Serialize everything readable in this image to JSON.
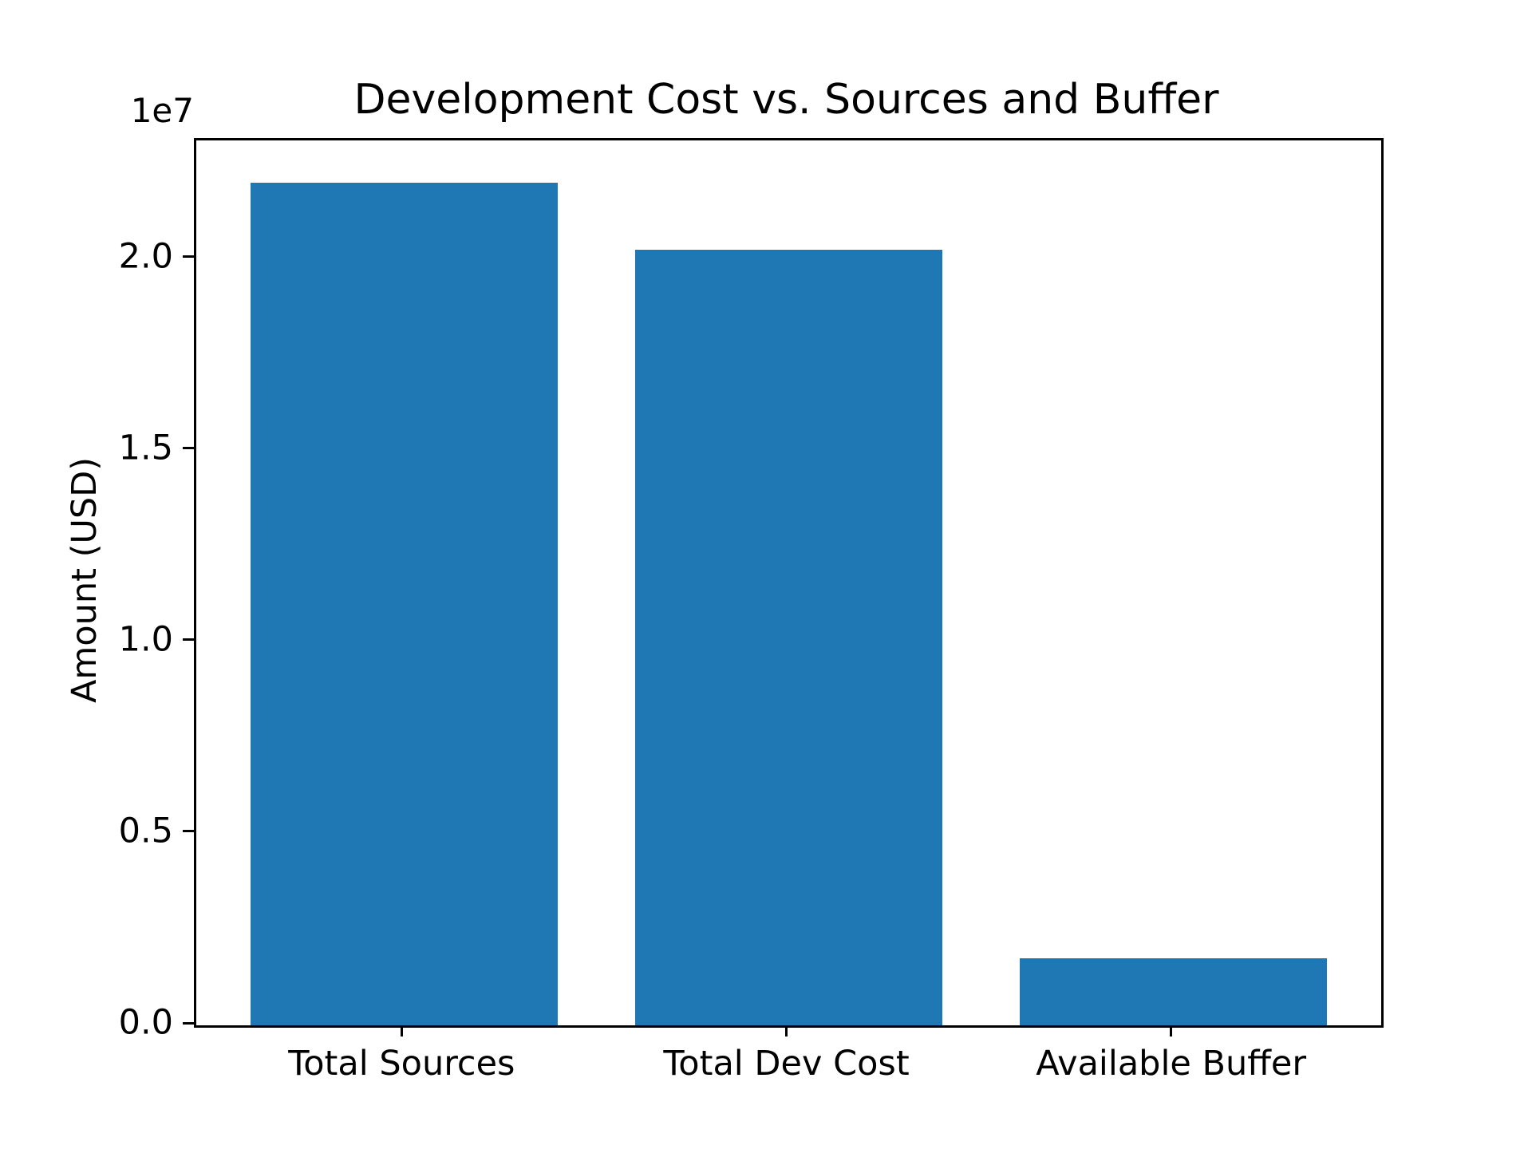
{
  "chart_data": {
    "type": "bar",
    "title": "Development Cost vs. Sources and Buffer",
    "ylabel": "Amount (USD)",
    "xlabel": "",
    "y_offset_text": "1e7",
    "categories": [
      "Total Sources",
      "Total Dev Cost",
      "Available Buffer"
    ],
    "values": [
      22000000,
      20250000,
      1750000
    ],
    "ytick_values": [
      0,
      5000000,
      10000000,
      15000000,
      20000000
    ],
    "ytick_labels": [
      "0.0",
      "0.5",
      "1.0",
      "1.5",
      "2.0"
    ],
    "ylim": [
      0,
      23100000
    ],
    "grid": false,
    "legend": false,
    "bar_color": "#1f77b4",
    "axis_color": "#000000",
    "background_color": "#ffffff"
  }
}
